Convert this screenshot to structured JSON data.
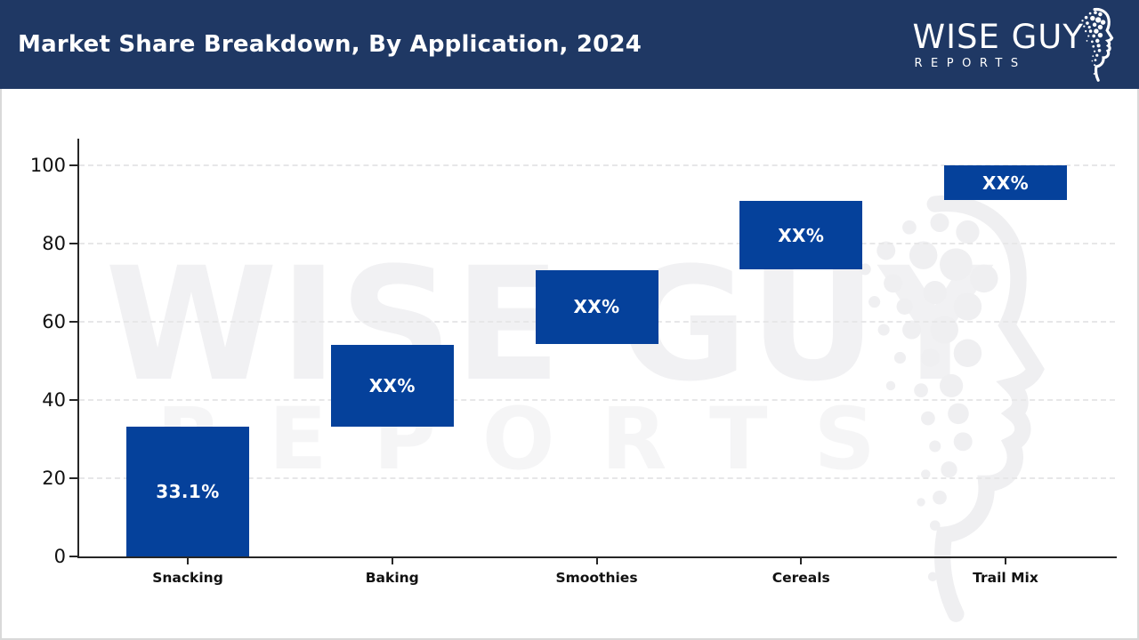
{
  "header": {
    "title": "Market Share Breakdown, By Application, 2024",
    "logo": {
      "primary": "WISE GUY",
      "secondary": "REPORTS"
    }
  },
  "watermark": {
    "primary": "WISE GUY",
    "secondary": "REPORTS"
  },
  "colors": {
    "header_bg": "#1f3864",
    "bar": "#05419b",
    "bar_label": "#ffffff",
    "grid": "#e7e7e8",
    "axis": "#262626",
    "tick_label": "#111111",
    "watermark": "#f1f1f3"
  },
  "chart_data": {
    "type": "bar",
    "subtype": "floating-waterfall",
    "title": "Market Share Breakdown, By Application, 2024",
    "categories": [
      "Snacking",
      "Baking",
      "Smoothies",
      "Cereals",
      "Trail Mix"
    ],
    "segments": [
      {
        "category": "Snacking",
        "start": 0,
        "end": 33.1,
        "label": "33.1%"
      },
      {
        "category": "Baking",
        "start": 33.1,
        "end": 54.2,
        "label": "XX%"
      },
      {
        "category": "Smoothies",
        "start": 54.4,
        "end": 73.2,
        "label": "XX%"
      },
      {
        "category": "Cereals",
        "start": 73.4,
        "end": 90.9,
        "label": "XX%"
      },
      {
        "category": "Trail Mix",
        "start": 91.1,
        "end": 100,
        "label": "XX%"
      }
    ],
    "xlabel": "",
    "ylabel": "",
    "yticks": [
      0,
      20,
      40,
      60,
      80,
      100
    ],
    "ylim": [
      0,
      106
    ],
    "grid": "horizontal-dashed",
    "legend": "none",
    "bar_color": "#05419b"
  }
}
